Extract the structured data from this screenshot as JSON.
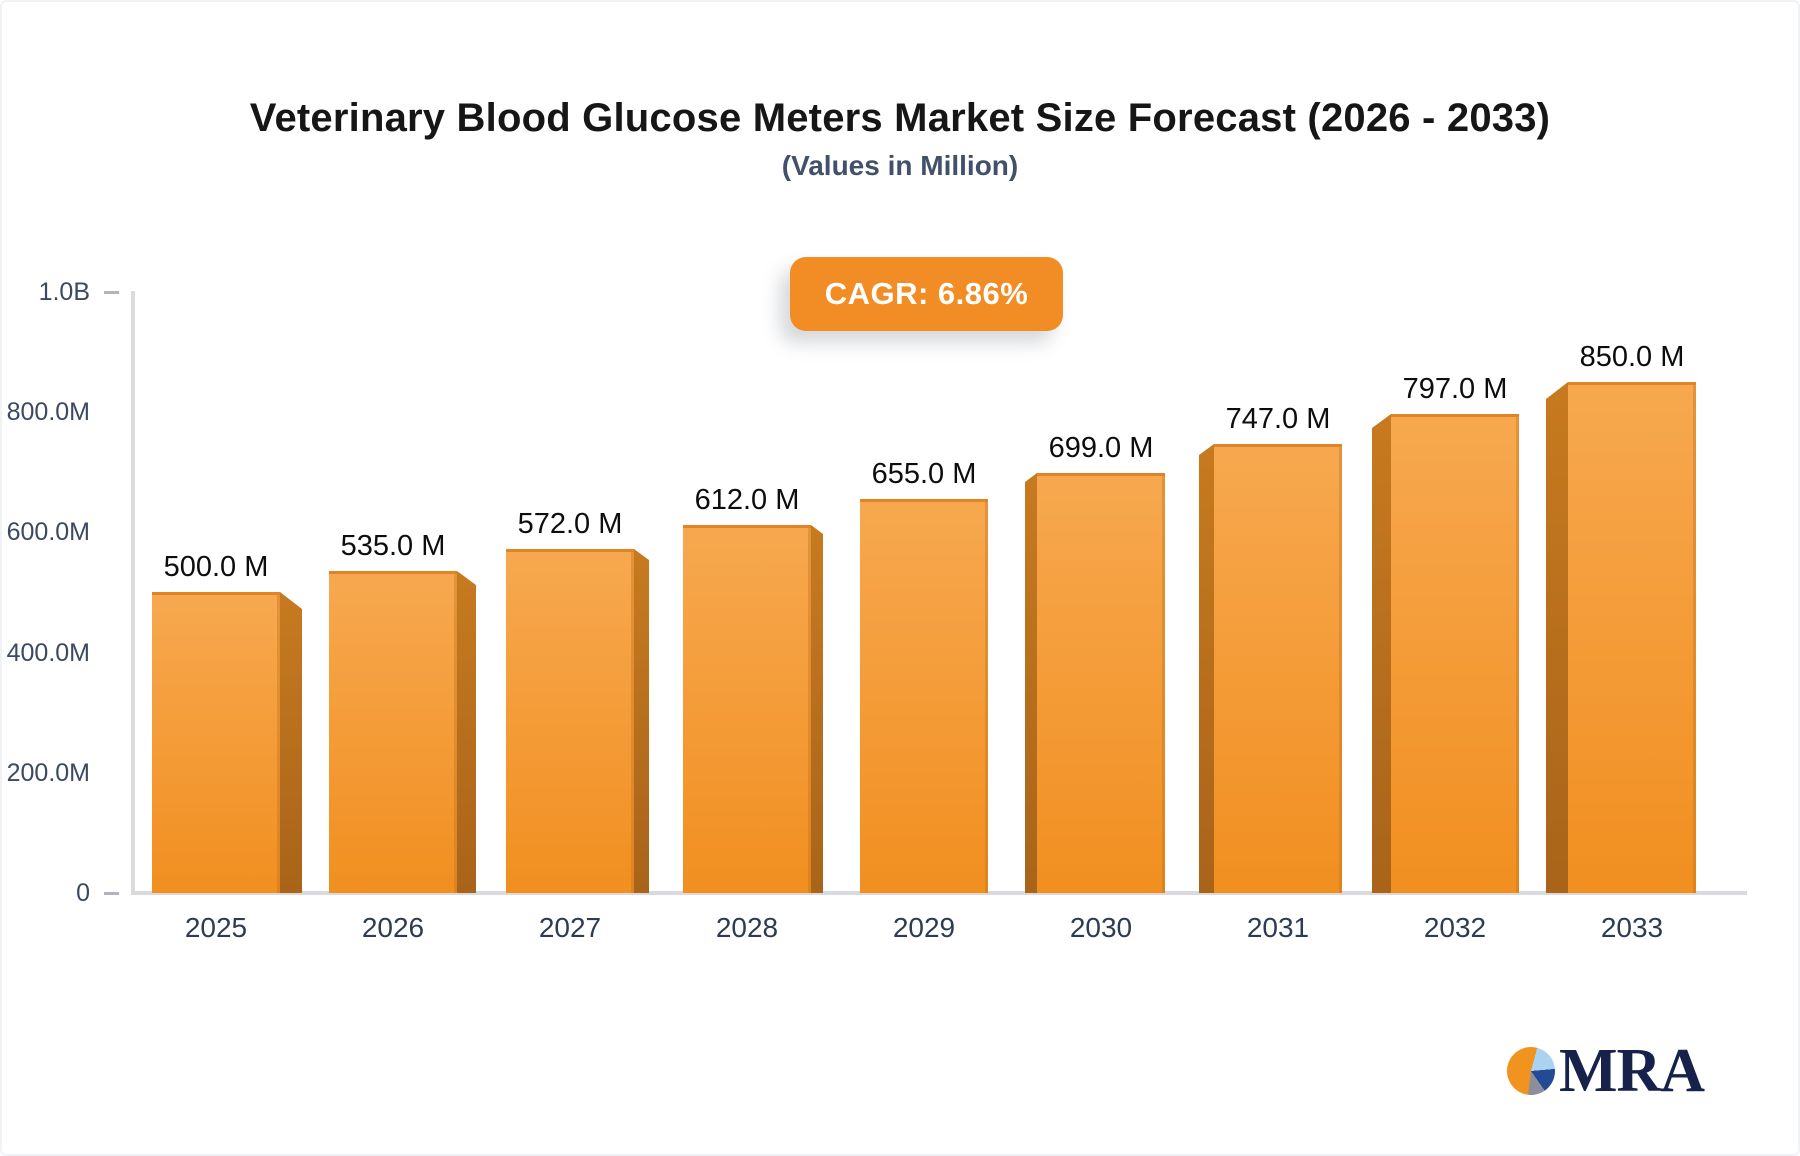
{
  "page": {
    "title": "Veterinary Blood Glucose Meters Market Size Forecast (2026 - 2033)",
    "subtitle": "(Values in Million)"
  },
  "badge": {
    "label": "CAGR: 6.86%"
  },
  "logo": {
    "text": "MRA"
  },
  "chart_data": {
    "type": "bar",
    "title": "Veterinary Blood Glucose Meters Market Size Forecast (2026 - 2033)",
    "subtitle": "(Values in Million)",
    "xlabel": "",
    "ylabel": "",
    "grid": false,
    "legend": "none",
    "categories": [
      "2025",
      "2026",
      "2027",
      "2028",
      "2029",
      "2030",
      "2031",
      "2032",
      "2033"
    ],
    "values": [
      500,
      535,
      572,
      612,
      655,
      699,
      747,
      797,
      850
    ],
    "bar_labels": [
      "500.0 M",
      "535.0 M",
      "572.0 M",
      "612.0 M",
      "655.0 M",
      "699.0 M",
      "747.0 M",
      "797.0 M",
      "850.0 M"
    ],
    "value_unit": "Million",
    "ylim": [
      0,
      1000
    ],
    "yticks": [
      {
        "label": "1.0B",
        "value": 1000,
        "dash": true
      },
      {
        "label": "800.0M",
        "value": 800,
        "dash": false
      },
      {
        "label": "600.0M",
        "value": 600,
        "dash": false
      },
      {
        "label": "400.0M",
        "value": 400,
        "dash": false
      },
      {
        "label": "200.0M",
        "value": 200,
        "dash": false
      },
      {
        "label": "0",
        "value": 0,
        "dash": true
      }
    ]
  },
  "colors": {
    "title": "#161616",
    "subtitle": "#42506b",
    "badge_bg": "#f28d26",
    "badge_text": "#ffffff",
    "bar_top": "#f7a84f",
    "bar_bottom": "#f18f20",
    "bar_edge": "#e08428",
    "side_top": "#c77a1f",
    "side_bottom": "#a9641a",
    "axis": "#d8dade",
    "tick": "#b0b4bd",
    "ytick_label": "#3c4963",
    "year_label": "#2e3b52",
    "value_label": "#0d0d0d",
    "logo_navy": "#16224c",
    "logo_navy_wedge": "#234a94",
    "logo_orange": "#f1941f",
    "logo_lightblue": "#a9d3f0",
    "logo_gray": "#8b8f99"
  }
}
